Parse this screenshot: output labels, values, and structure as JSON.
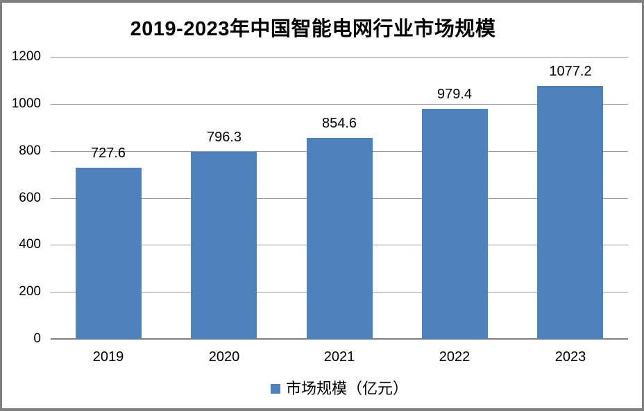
{
  "chart_data": {
    "type": "bar",
    "title": "2019-2023年中国智能电网行业市场规模",
    "categories": [
      "2019",
      "2020",
      "2021",
      "2022",
      "2023"
    ],
    "series": [
      {
        "name": "市场规模（亿元）",
        "values": [
          727.6,
          796.3,
          854.6,
          979.4,
          1077.2
        ]
      }
    ],
    "data_labels": [
      "727.6",
      "796.3",
      "854.6",
      "979.4",
      "1077.2"
    ],
    "xlabel": "",
    "ylabel": "",
    "ylim": [
      0,
      1200
    ],
    "yticks": [
      0,
      200,
      400,
      600,
      800,
      1000,
      1200
    ],
    "ytick_labels": [
      "0",
      "200",
      "400",
      "600",
      "800",
      "1000",
      "1200"
    ],
    "grid": true,
    "legend_position": "bottom",
    "colors": {
      "bar": "#4F81BD",
      "gridline": "#999999",
      "baseline": "#808080",
      "text": "#000000",
      "frame_border": "#808080",
      "background": "#FFFFFF"
    }
  }
}
